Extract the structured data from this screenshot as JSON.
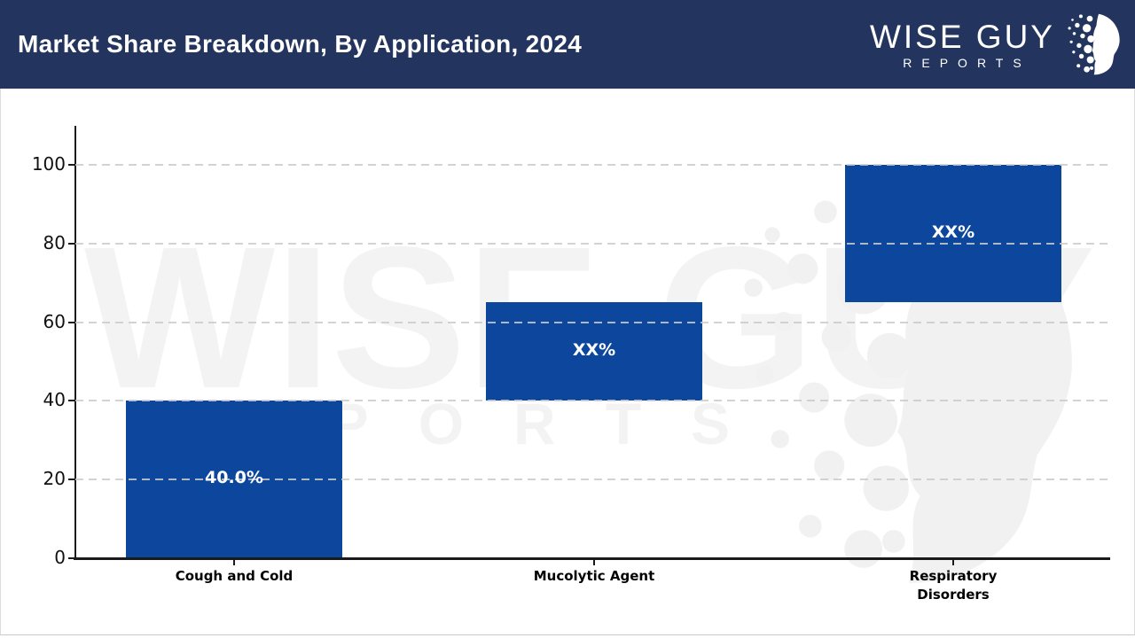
{
  "header": {
    "title": "Market Share Breakdown, By Application, 2024",
    "background_color": "#23345e",
    "logo": {
      "line1": "WISE GUY",
      "line2": "REPORTS"
    }
  },
  "watermark": {
    "line1": "WISE GUY",
    "line2": "REPORTS"
  },
  "chart_data": {
    "type": "bar",
    "subtype": "waterfall",
    "title": "Market Share Breakdown, By Application, 2024",
    "categories": [
      "Cough and Cold",
      "Mucolytic Agent",
      "Respiratory Disorders"
    ],
    "values": [
      40,
      25,
      35
    ],
    "segments": [
      {
        "category": "Cough and Cold",
        "start": 0,
        "end": 40,
        "label": "40.0%"
      },
      {
        "category": "Mucolytic Agent",
        "start": 40,
        "end": 65,
        "label": "XX%"
      },
      {
        "category": "Respiratory Disorders",
        "start": 65,
        "end": 100,
        "label": "XX%"
      }
    ],
    "xlabel": "",
    "ylabel": "",
    "yticks": [
      0,
      20,
      40,
      60,
      80,
      100
    ],
    "ylim": [
      0,
      110
    ],
    "grid": true,
    "gridline_style": "dashed",
    "gridline_color": "#d4d4d4",
    "bar_color": "#0c479d",
    "legend": "none"
  }
}
